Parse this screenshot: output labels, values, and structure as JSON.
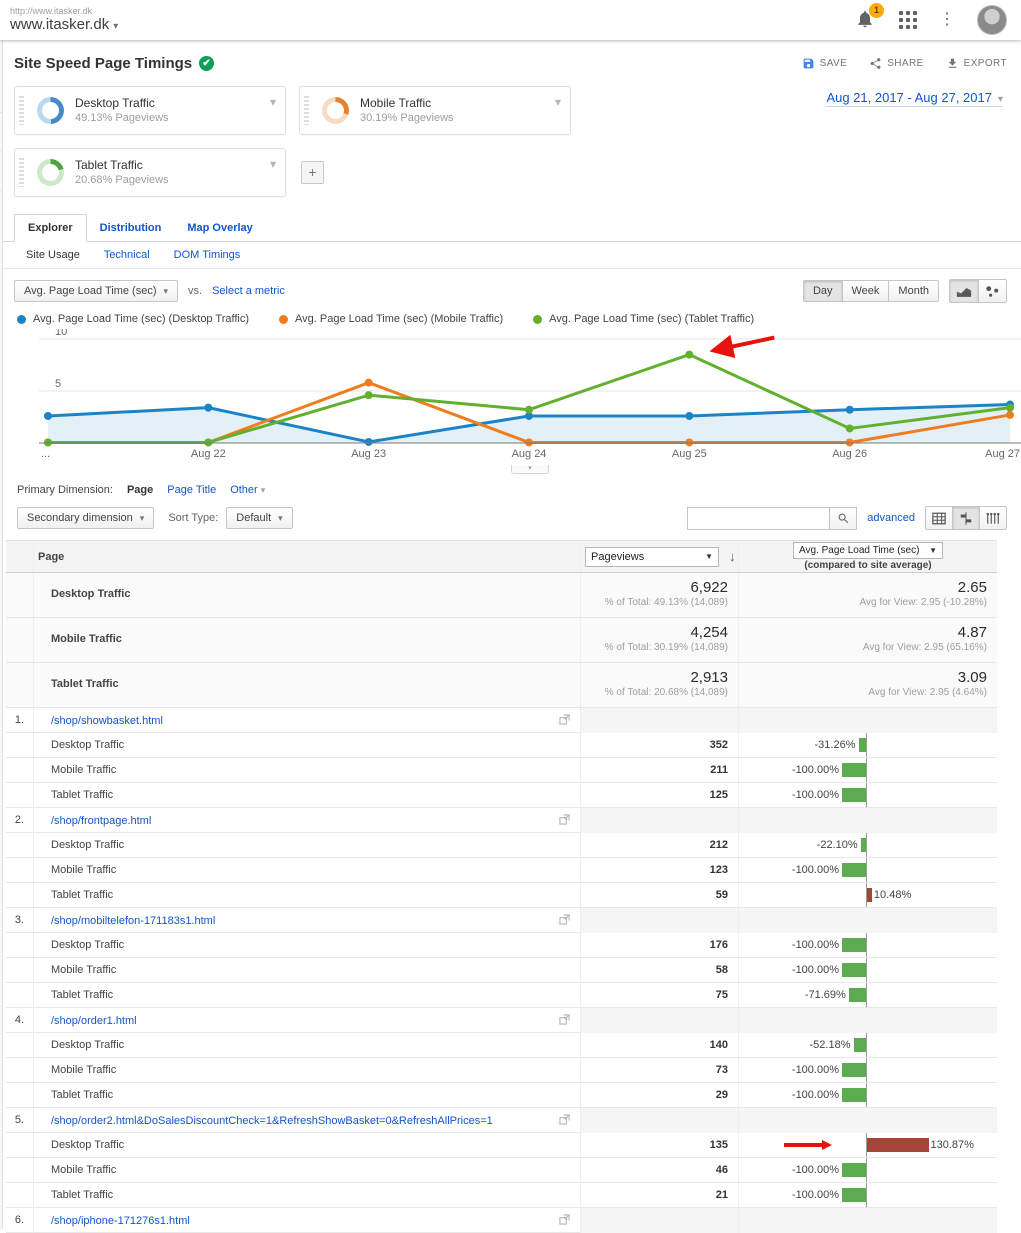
{
  "topbar": {
    "url": "http://www.itasker.dk",
    "account": "www.itasker.dk",
    "notification_count": "1"
  },
  "report": {
    "title": "Site Speed Page Timings",
    "save_label": "SAVE",
    "share_label": "SHARE",
    "export_label": "EXPORT",
    "date_range": "Aug 21, 2017 - Aug 27, 2017"
  },
  "segments": [
    {
      "name": "Desktop Traffic",
      "sub": "49.13% Pageviews",
      "pct": 49.13,
      "color": "#4a89c8",
      "color_light": "#b9d9f0"
    },
    {
      "name": "Mobile Traffic",
      "sub": "30.19% Pageviews",
      "pct": 30.19,
      "color": "#e8812c",
      "color_light": "#f6dcc1"
    },
    {
      "name": "Tablet Traffic",
      "sub": "20.68% Pageviews",
      "pct": 20.68,
      "color": "#4ca342",
      "color_light": "#cfe8cb"
    }
  ],
  "tabs": [
    "Explorer",
    "Distribution",
    "Map Overlay"
  ],
  "subtabs": [
    "Site Usage",
    "Technical",
    "DOM Timings"
  ],
  "metric_bar": {
    "metric_selector": "Avg. Page Load Time (sec)",
    "vs_label": "vs.",
    "select_metric_label": "Select a metric",
    "granularities": [
      "Day",
      "Week",
      "Month"
    ],
    "active_granularity": "Day"
  },
  "legend": [
    {
      "label": "Avg. Page Load Time (sec) (Desktop Traffic)",
      "color": "#1c83c6"
    },
    {
      "label": "Avg. Page Load Time (sec) (Mobile Traffic)",
      "color": "#ef7c1f"
    },
    {
      "label": "Avg. Page Load Time (sec) (Tablet Traffic)",
      "color": "#63b02e"
    }
  ],
  "chart_data": {
    "type": "line",
    "x": [
      "...",
      "Aug 22",
      "Aug 23",
      "Aug 24",
      "Aug 25",
      "Aug 26",
      "Aug 27"
    ],
    "series": [
      {
        "name": "Avg. Page Load Time (sec) (Desktop Traffic)",
        "color": "#1c83c6",
        "area": true,
        "values": [
          2.6,
          3.4,
          0.1,
          2.6,
          2.6,
          3.2,
          3.7
        ]
      },
      {
        "name": "Avg. Page Load Time (sec) (Mobile Traffic)",
        "color": "#ef7c1f",
        "area": false,
        "values": [
          0.05,
          0.05,
          5.8,
          0.05,
          0.05,
          0.05,
          2.7
        ]
      },
      {
        "name": "Avg. Page Load Time (sec) (Tablet Traffic)",
        "color": "#63b02e",
        "area": false,
        "values": [
          0.05,
          0.05,
          4.6,
          3.2,
          8.5,
          1.4,
          3.4
        ]
      }
    ],
    "ylim": [
      0,
      10
    ],
    "yticks": [
      5,
      10
    ],
    "legend_position": "top",
    "grid": true,
    "annotation": {
      "type": "red-arrow",
      "target_series": 2,
      "target_index": 4
    }
  },
  "primary_dimension": {
    "label": "Primary Dimension:",
    "active": "Page",
    "options": [
      "Page Title",
      "Other"
    ]
  },
  "table_toolbar": {
    "secondary_dimension_label": "Secondary dimension",
    "sort_type_label": "Sort Type:",
    "sort_type_value": "Default",
    "search_value": "",
    "advanced_label": "advanced"
  },
  "table": {
    "headers": {
      "page": "Page",
      "pageviews": "Pageviews",
      "avg": "Avg. Page Load Time (sec)",
      "avg_sub": "(compared to site average)"
    },
    "summary_rows": [
      {
        "label": "Desktop Traffic",
        "pageviews": "6,922",
        "pv_sub": "% of Total: 49.13% (14,089)",
        "avg": "2.65",
        "avg_sub": "Avg for View: 2.95 (-10.28%)"
      },
      {
        "label": "Mobile Traffic",
        "pageviews": "4,254",
        "pv_sub": "% of Total: 30.19% (14,089)",
        "avg": "4.87",
        "avg_sub": "Avg for View: 2.95 (65.16%)"
      },
      {
        "label": "Tablet Traffic",
        "pageviews": "2,913",
        "pv_sub": "% of Total: 20.68% (14,089)",
        "avg": "3.09",
        "avg_sub": "Avg for View: 2.95 (4.64%)"
      }
    ],
    "rows": [
      {
        "num": "1.",
        "url": "/shop/showbasket.html",
        "entries": [
          {
            "label": "Desktop Traffic",
            "pageviews": "352",
            "pct": -31.26,
            "pct_label": "-31.26%"
          },
          {
            "label": "Mobile Traffic",
            "pageviews": "211",
            "pct": -100,
            "pct_label": "-100.00%"
          },
          {
            "label": "Tablet Traffic",
            "pageviews": "125",
            "pct": -100,
            "pct_label": "-100.00%"
          }
        ]
      },
      {
        "num": "2.",
        "url": "/shop/frontpage.html",
        "entries": [
          {
            "label": "Desktop Traffic",
            "pageviews": "212",
            "pct": -22.1,
            "pct_label": "-22.10%"
          },
          {
            "label": "Mobile Traffic",
            "pageviews": "123",
            "pct": -100,
            "pct_label": "-100.00%"
          },
          {
            "label": "Tablet Traffic",
            "pageviews": "59",
            "pct": 10.48,
            "pct_label": "10.48%"
          }
        ]
      },
      {
        "num": "3.",
        "url": "/shop/mobiltelefon-171183s1.html",
        "entries": [
          {
            "label": "Desktop Traffic",
            "pageviews": "176",
            "pct": -100,
            "pct_label": "-100.00%"
          },
          {
            "label": "Mobile Traffic",
            "pageviews": "58",
            "pct": -100,
            "pct_label": "-100.00%"
          },
          {
            "label": "Tablet Traffic",
            "pageviews": "75",
            "pct": -71.69,
            "pct_label": "-71.69%"
          }
        ]
      },
      {
        "num": "4.",
        "url": "/shop/order1.html",
        "entries": [
          {
            "label": "Desktop Traffic",
            "pageviews": "140",
            "pct": -52.18,
            "pct_label": "-52.18%"
          },
          {
            "label": "Mobile Traffic",
            "pageviews": "73",
            "pct": -100,
            "pct_label": "-100.00%"
          },
          {
            "label": "Tablet Traffic",
            "pageviews": "29",
            "pct": -100,
            "pct_label": "-100.00%"
          }
        ]
      },
      {
        "num": "5.",
        "url": "/shop/order2.html&DoSalesDiscountCheck=1&RefreshShowBasket=0&RefreshAllPrices=1",
        "entries": [
          {
            "label": "Desktop Traffic",
            "pageviews": "135",
            "pct": 130.87,
            "pct_label": "130.87%",
            "arrow": true
          },
          {
            "label": "Mobile Traffic",
            "pageviews": "46",
            "pct": -100,
            "pct_label": "-100.00%"
          },
          {
            "label": "Tablet Traffic",
            "pageviews": "21",
            "pct": -100,
            "pct_label": "-100.00%"
          }
        ]
      },
      {
        "num": "6.",
        "url": "/shop/iphone-171276s1.html",
        "entries": []
      }
    ]
  },
  "icons": {
    "caret_down": "▾",
    "select_arrow": "▼",
    "sort_desc": "↓",
    "more_vertical": "⋮",
    "add": "+",
    "check": "✔"
  },
  "colors": {
    "link_blue": "#1155cc",
    "bar_green": "#5cab50",
    "bar_red": "#a8433a",
    "arrow_red": "#e8110c",
    "badge_orange": "#f9ab00",
    "verified_green": "#0f9d58"
  }
}
